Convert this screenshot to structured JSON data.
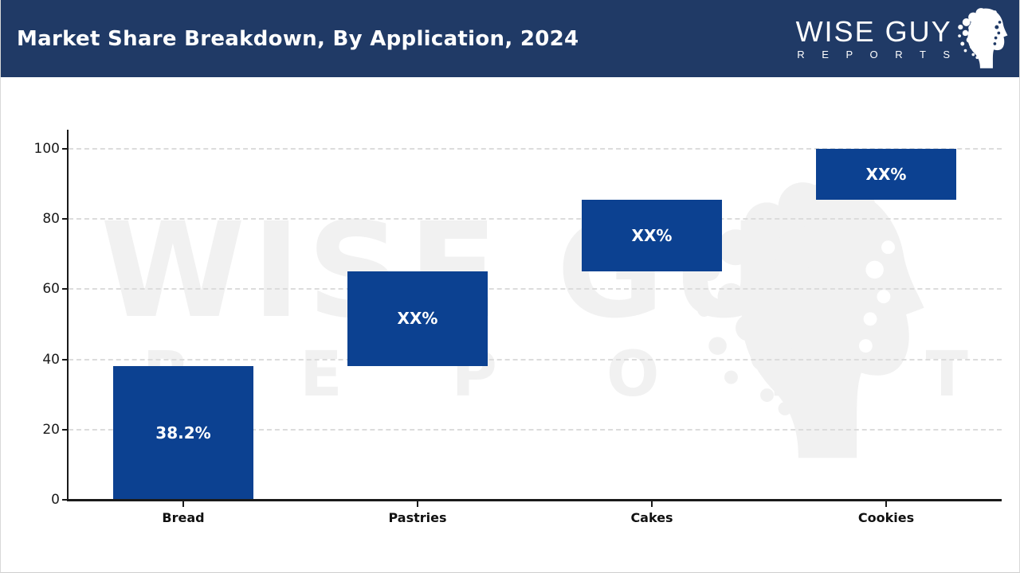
{
  "header": {
    "title": "Market Share Breakdown, By Application, 2024",
    "logo_line1": "WISE GUY",
    "logo_line2": "R E P O R T S"
  },
  "watermark": {
    "line1": "WISE GUY",
    "line2": "R E P O R T S"
  },
  "chart_data": {
    "type": "bar",
    "subtype": "floating-waterfall",
    "title": "Market Share Breakdown, By Application, 2024",
    "categories": [
      "Bread",
      "Pastries",
      "Cakes",
      "Cookies"
    ],
    "segments": [
      {
        "category": "Bread",
        "start": 0,
        "end": 38.2,
        "label": "38.2%"
      },
      {
        "category": "Pastries",
        "start": 38.2,
        "end": 65,
        "label": "XX%"
      },
      {
        "category": "Cakes",
        "start": 65,
        "end": 85.5,
        "label": "XX%"
      },
      {
        "category": "Cookies",
        "start": 85.5,
        "end": 100,
        "label": "XX%"
      }
    ],
    "y_ticks": [
      0,
      20,
      40,
      60,
      80,
      100
    ],
    "ylim": [
      0,
      105
    ],
    "xlabel": "",
    "ylabel": "",
    "grid": "horizontal-dashed",
    "legend": "none"
  },
  "colors": {
    "header_bg": "#203A66",
    "bar_blue": "#0C4191",
    "bar_label": "#FFFFFF",
    "gridline": "#DCDCDC",
    "axis": "#1A1A1A",
    "watermark": "#F1F1F1",
    "page_border": "#D9D9D9"
  }
}
